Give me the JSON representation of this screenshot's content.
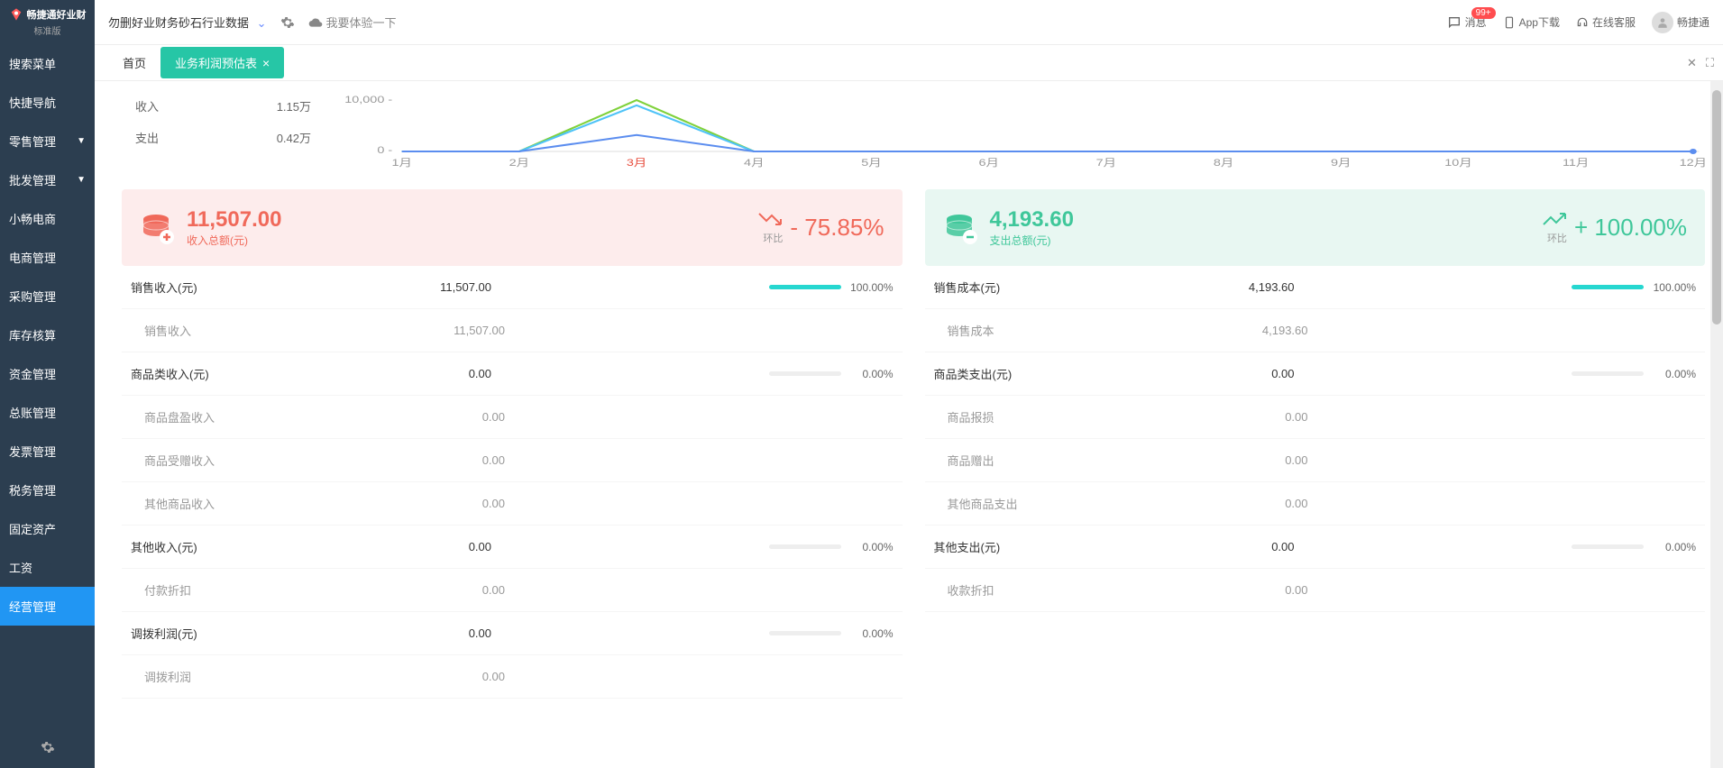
{
  "logo": {
    "title": "畅捷通好业财",
    "subtitle": "标准版"
  },
  "sidebar": {
    "items": [
      {
        "label": "搜索菜单",
        "expandable": false
      },
      {
        "label": "快捷导航",
        "expandable": false
      },
      {
        "label": "零售管理",
        "expandable": true
      },
      {
        "label": "批发管理",
        "expandable": true
      },
      {
        "label": "小畅电商",
        "expandable": false
      },
      {
        "label": "电商管理",
        "expandable": false
      },
      {
        "label": "采购管理",
        "expandable": false
      },
      {
        "label": "库存核算",
        "expandable": false
      },
      {
        "label": "资金管理",
        "expandable": false
      },
      {
        "label": "总账管理",
        "expandable": false
      },
      {
        "label": "发票管理",
        "expandable": false
      },
      {
        "label": "税务管理",
        "expandable": false
      },
      {
        "label": "固定资产",
        "expandable": false
      },
      {
        "label": "工资",
        "expandable": false
      },
      {
        "label": "经营管理",
        "expandable": false,
        "active": true
      }
    ]
  },
  "header": {
    "company": "勿删好业财务砂石行业数据",
    "try_text": "我要体验一下",
    "right": {
      "message": "消息",
      "badge": "99+",
      "download": "App下载",
      "service": "在线客服",
      "user": "畅捷通"
    }
  },
  "tabs": {
    "home": "首页",
    "active": "业务利润预估表"
  },
  "summary": {
    "income_label": "收入",
    "income_value": "1.15万",
    "expense_label": "支出",
    "expense_value": "0.42万"
  },
  "chart": {
    "y_ticks": [
      "10,000",
      "0"
    ],
    "months": [
      "1月",
      "2月",
      "3月",
      "4月",
      "5月",
      "6月",
      "7月",
      "8月",
      "9月",
      "10月",
      "11月",
      "12月"
    ],
    "highlight_month_index": 2,
    "series": [
      {
        "color": "#7fd13b",
        "points": [
          0,
          0,
          78,
          0,
          0,
          0,
          0,
          0,
          0,
          0,
          0,
          0
        ]
      },
      {
        "color": "#4fc3f7",
        "points": [
          0,
          0,
          70,
          0,
          0,
          0,
          0,
          0,
          0,
          0,
          0,
          0
        ]
      },
      {
        "color": "#5b8def",
        "points": [
          0,
          0,
          25,
          0,
          0,
          0,
          0,
          0,
          0,
          0,
          0,
          0
        ]
      }
    ]
  },
  "income_panel": {
    "total": "11,507.00",
    "total_label": "收入总额(元)",
    "compare_label": "环比",
    "pct": "- 75.85%",
    "icon_color": "#f0695a",
    "rows": [
      {
        "label": "销售收入(元)",
        "value": "11,507.00",
        "pct": "100.00%",
        "bar": 100,
        "sub": false,
        "showbar": true
      },
      {
        "label": "销售收入",
        "value": "11,507.00",
        "sub": true,
        "showbar": false
      },
      {
        "label": "商品类收入(元)",
        "value": "0.00",
        "pct": "0.00%",
        "bar": 0,
        "sub": false,
        "showbar": true
      },
      {
        "label": "商品盘盈收入",
        "value": "0.00",
        "sub": true,
        "showbar": false
      },
      {
        "label": "商品受赠收入",
        "value": "0.00",
        "sub": true,
        "showbar": false
      },
      {
        "label": "其他商品收入",
        "value": "0.00",
        "sub": true,
        "showbar": false
      },
      {
        "label": "其他收入(元)",
        "value": "0.00",
        "pct": "0.00%",
        "bar": 0,
        "sub": false,
        "showbar": true
      },
      {
        "label": "付款折扣",
        "value": "0.00",
        "sub": true,
        "showbar": false
      },
      {
        "label": "调拨利润(元)",
        "value": "0.00",
        "pct": "0.00%",
        "bar": 0,
        "sub": false,
        "showbar": true
      },
      {
        "label": "调拨利润",
        "value": "0.00",
        "sub": true,
        "showbar": false
      }
    ]
  },
  "expense_panel": {
    "total": "4,193.60",
    "total_label": "支出总额(元)",
    "compare_label": "环比",
    "pct": "+ 100.00%",
    "icon_color": "#3fc79a",
    "rows": [
      {
        "label": "销售成本(元)",
        "value": "4,193.60",
        "pct": "100.00%",
        "bar": 100,
        "sub": false,
        "showbar": true
      },
      {
        "label": "销售成本",
        "value": "4,193.60",
        "sub": true,
        "showbar": false
      },
      {
        "label": "商品类支出(元)",
        "value": "0.00",
        "pct": "0.00%",
        "bar": 0,
        "sub": false,
        "showbar": true
      },
      {
        "label": "商品报损",
        "value": "0.00",
        "sub": true,
        "showbar": false
      },
      {
        "label": "商品赠出",
        "value": "0.00",
        "sub": true,
        "showbar": false
      },
      {
        "label": "其他商品支出",
        "value": "0.00",
        "sub": true,
        "showbar": false
      },
      {
        "label": "其他支出(元)",
        "value": "0.00",
        "pct": "0.00%",
        "bar": 0,
        "sub": false,
        "showbar": true
      },
      {
        "label": "收款折扣",
        "value": "0.00",
        "sub": true,
        "showbar": false
      }
    ]
  }
}
